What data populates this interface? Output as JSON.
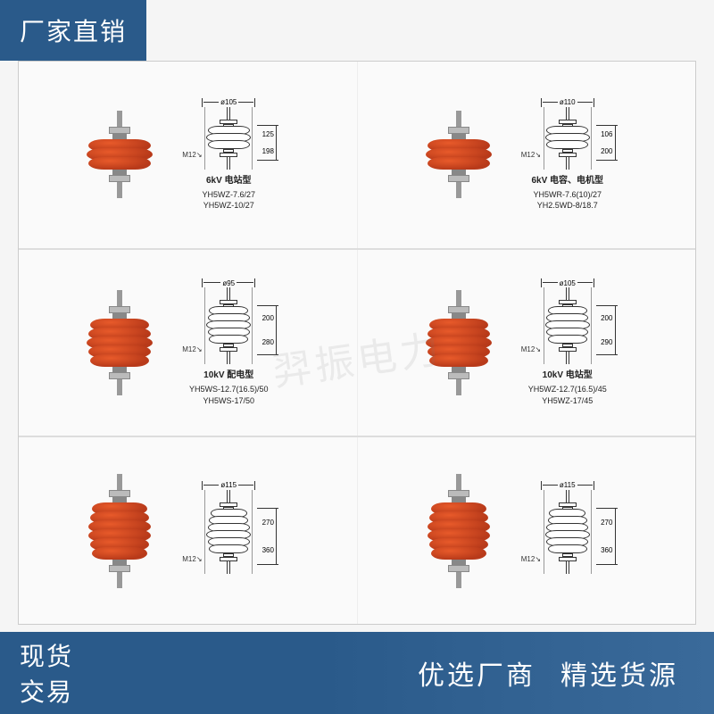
{
  "badges": {
    "top_left": "厂家直销",
    "bottom_left": "现货\n交易",
    "bottom_right_a": "优选厂商",
    "bottom_right_b": "精选货源"
  },
  "colors": {
    "badge_bg": "#2a5a8a",
    "badge_text": "#ffffff",
    "arrester_body": "#c8431f",
    "arrester_highlight": "#e85a2a",
    "page_bg": "#f5f5f5",
    "cell_bg": "#fafafa",
    "diagram_line": "#333333"
  },
  "watermark": "羿振电力",
  "rows": [
    {
      "left": {
        "discs": 3,
        "disc_widths": [
          70,
          74,
          70
        ],
        "diagram_discs": 3,
        "top_dim": "ø105",
        "side_dims": [
          "125",
          "198"
        ],
        "m_label": "M12",
        "title": "6kV 电站型",
        "models": [
          "YH5WZ-7.6/27",
          "YH5WZ-10/27"
        ]
      },
      "right": {
        "discs": 3,
        "disc_widths": [
          70,
          74,
          70
        ],
        "diagram_discs": 3,
        "top_dim": "ø110",
        "side_dims": [
          "106",
          "200"
        ],
        "m_label": "M12",
        "title": "6kV 电容、电机型",
        "models": [
          "YH5WR-7.6(10)/27",
          "YH2.5WD-8/18.7"
        ]
      }
    },
    {
      "left": {
        "discs": 5,
        "disc_widths": [
          66,
          70,
          74,
          70,
          66
        ],
        "diagram_discs": 5,
        "top_dim": "ø95",
        "side_dims": [
          "200",
          "280"
        ],
        "m_label": "M12",
        "title": "10kV 配电型",
        "models": [
          "YH5WS-12.7(16.5)/50",
          "YH5WS-17/50"
        ]
      },
      "right": {
        "discs": 5,
        "disc_widths": [
          66,
          70,
          74,
          70,
          66
        ],
        "diagram_discs": 5,
        "top_dim": "ø105",
        "side_dims": [
          "200",
          "290"
        ],
        "m_label": "M12",
        "title": "10kV 电站型",
        "models": [
          "YH5WZ-12.7(16.5)/45",
          "YH5WZ-17/45"
        ]
      }
    },
    {
      "left": {
        "discs": 6,
        "disc_widths": [
          62,
          66,
          70,
          70,
          66,
          62
        ],
        "diagram_discs": 6,
        "top_dim": "ø115",
        "side_dims": [
          "270",
          "360"
        ],
        "m_label": "M12",
        "title": "",
        "models": []
      },
      "right": {
        "discs": 6,
        "disc_widths": [
          62,
          66,
          70,
          70,
          66,
          62
        ],
        "diagram_discs": 6,
        "top_dim": "ø115",
        "side_dims": [
          "270",
          "360"
        ],
        "m_label": "M12",
        "title": "",
        "models": []
      }
    }
  ]
}
